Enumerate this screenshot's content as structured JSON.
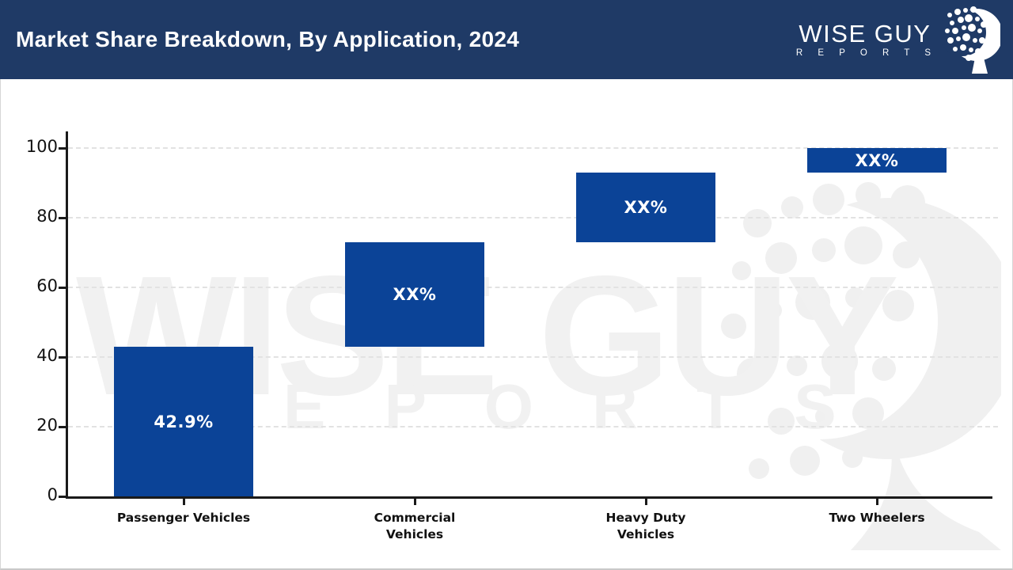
{
  "header": {
    "title": "Market Share Breakdown, By Application, 2024",
    "logo": {
      "line1": "WISE GUY",
      "line2": "R E P O R T S"
    }
  },
  "watermark": {
    "line1": "WISE GUY",
    "line2": "R E P O R T S"
  },
  "chart_data": {
    "type": "bar",
    "subtype": "waterfall",
    "title": "Market Share Breakdown, By Application, 2024",
    "categories": [
      "Passenger Vehicles",
      "Commercial\nVehicles",
      "Heavy Duty\nVehicles",
      "Two Wheelers"
    ],
    "segments": [
      {
        "category": "Passenger Vehicles",
        "start": 0,
        "end": 42.9,
        "label": "42.9%"
      },
      {
        "category": "Commercial Vehicles",
        "start": 42.9,
        "end": 72.9,
        "label": "XX%"
      },
      {
        "category": "Heavy Duty Vehicles",
        "start": 72.9,
        "end": 92.9,
        "label": "XX%"
      },
      {
        "category": "Two Wheelers",
        "start": 92.9,
        "end": 100,
        "label": "XX%"
      }
    ],
    "xlabel": "",
    "ylabel": "",
    "ylim": [
      0,
      100
    ],
    "yticks": [
      0,
      20,
      40,
      60,
      80,
      100
    ],
    "grid": "horizontal-dashed",
    "legend": "none",
    "colors": {
      "bar": "#0b4397",
      "bar_label": "#ffffff",
      "axis": "#1a1a1a",
      "gridline": "#e2e2e2",
      "header_bg": "#1f3a66",
      "watermark": "#f1f1f1"
    }
  }
}
